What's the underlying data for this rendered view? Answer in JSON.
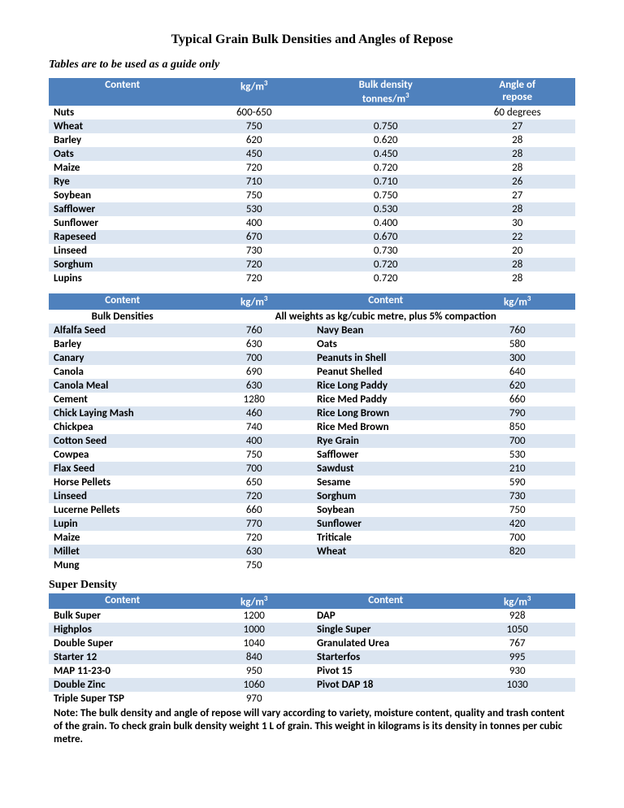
{
  "doc": {
    "title": "Typical Grain Bulk Densities and Angles of Repose",
    "subtitle": "Tables are to be used as a guide only",
    "section3": "Super Density",
    "note": "Note:  The bulk density and angle of repose will vary according to variety, moisture content, quality and trash content of the grain.  To check grain bulk density weight 1 L of grain.  This weight in kilograms is its density in tonnes per cubic metre."
  },
  "t1": {
    "h": {
      "c1": "Content",
      "c2": "kg/m",
      "c3": "Bulk density tonnes/m",
      "c4": "Angle of repose"
    },
    "rows": [
      {
        "c1": "Nuts",
        "c2": "600-650",
        "c3": "",
        "c4": "60 degrees"
      },
      {
        "c1": "Wheat",
        "c2": "750",
        "c3": "0.750",
        "c4": "27"
      },
      {
        "c1": "Barley",
        "c2": "620",
        "c3": "0.620",
        "c4": "28"
      },
      {
        "c1": "Oats",
        "c2": "450",
        "c3": "0.450",
        "c4": "28"
      },
      {
        "c1": "Maize",
        "c2": "720",
        "c3": "0.720",
        "c4": "28"
      },
      {
        "c1": "Rye",
        "c2": "710",
        "c3": "0.710",
        "c4": "26"
      },
      {
        "c1": "Soybean",
        "c2": "750",
        "c3": "0.750",
        "c4": "27"
      },
      {
        "c1": "Safflower",
        "c2": "530",
        "c3": "0.530",
        "c4": "28"
      },
      {
        "c1": "Sunflower",
        "c2": "400",
        "c3": "0.400",
        "c4": "30"
      },
      {
        "c1": "Rapeseed",
        "c2": "670",
        "c3": "0.670",
        "c4": "22"
      },
      {
        "c1": "Linseed",
        "c2": "730",
        "c3": "0.730",
        "c4": "20"
      },
      {
        "c1": "Sorghum",
        "c2": "720",
        "c3": "0.720",
        "c4": "28"
      },
      {
        "c1": "Lupins",
        "c2": "720",
        "c3": "0.720",
        "c4": "28"
      }
    ]
  },
  "t2": {
    "h": {
      "c1": "Content",
      "c2": "kg/m",
      "c3": "Content",
      "c4": "kg/m"
    },
    "sub": {
      "left": "Bulk Densities",
      "right": "All weights as kg/cubic metre, plus 5% compaction"
    },
    "rows": [
      {
        "c1": "Alfalfa Seed",
        "c2": "760",
        "c3": "Navy Bean",
        "c4": "760"
      },
      {
        "c1": "Barley",
        "c2": "630",
        "c3": "Oats",
        "c4": "580"
      },
      {
        "c1": "Canary",
        "c2": "700",
        "c3": "Peanuts in Shell",
        "c4": "300"
      },
      {
        "c1": "Canola",
        "c2": "690",
        "c3": "Peanut Shelled",
        "c4": "640"
      },
      {
        "c1": "Canola Meal",
        "c2": "630",
        "c3": "Rice Long Paddy",
        "c4": "620"
      },
      {
        "c1": "Cement",
        "c2": "1280",
        "c3": "Rice Med Paddy",
        "c4": "660"
      },
      {
        "c1": "Chick Laying Mash",
        "c2": "460",
        "c3": "Rice Long Brown",
        "c4": "790"
      },
      {
        "c1": "Chickpea",
        "c2": "740",
        "c3": "Rice Med Brown",
        "c4": "850"
      },
      {
        "c1": "Cotton Seed",
        "c2": "400",
        "c3": "Rye Grain",
        "c4": "700"
      },
      {
        "c1": "Cowpea",
        "c2": "750",
        "c3": "Safflower",
        "c4": "530"
      },
      {
        "c1": "Flax Seed",
        "c2": "700",
        "c3": "Sawdust",
        "c4": "210"
      },
      {
        "c1": "Horse Pellets",
        "c2": "650",
        "c3": "Sesame",
        "c4": "590"
      },
      {
        "c1": "Linseed",
        "c2": "720",
        "c3": "Sorghum",
        "c4": "730"
      },
      {
        "c1": "Lucerne Pellets",
        "c2": "660",
        "c3": "Soybean",
        "c4": "750"
      },
      {
        "c1": "Lupin",
        "c2": "770",
        "c3": "Sunflower",
        "c4": "420"
      },
      {
        "c1": "Maize",
        "c2": "720",
        "c3": "Triticale",
        "c4": "700"
      },
      {
        "c1": "Millet",
        "c2": "630",
        "c3": "Wheat",
        "c4": "820"
      },
      {
        "c1": "Mung",
        "c2": "750",
        "c3": "",
        "c4": ""
      }
    ]
  },
  "t3": {
    "h": {
      "c1": "Content",
      "c2": "kg/m",
      "c3": "Content",
      "c4": "kg/m"
    },
    "rows": [
      {
        "c1": "Bulk Super",
        "c2": "1200",
        "c3": "DAP",
        "c4": "928"
      },
      {
        "c1": "Highplos",
        "c2": "1000",
        "c3": "Single Super",
        "c4": "1050"
      },
      {
        "c1": "Double Super",
        "c2": "1040",
        "c3": "Granulated Urea",
        "c4": "767"
      },
      {
        "c1": "Starter 12",
        "c2": "840",
        "c3": "Starterfos",
        "c4": "995"
      },
      {
        "c1": "MAP 11-23-0",
        "c2": "950",
        "c3": "Pivot 15",
        "c4": "930"
      },
      {
        "c1": "Double Zinc",
        "c2": "1060",
        "c3": "Pivot DAP 18",
        "c4": "1030"
      },
      {
        "c1": "Triple Super TSP",
        "c2": "970",
        "c3": "",
        "c4": ""
      }
    ]
  },
  "style": {
    "header_bg": "#4f81bd",
    "header_fg": "#ffffff",
    "band_blue": "#dbe5f1",
    "band_white": "#ffffff"
  }
}
